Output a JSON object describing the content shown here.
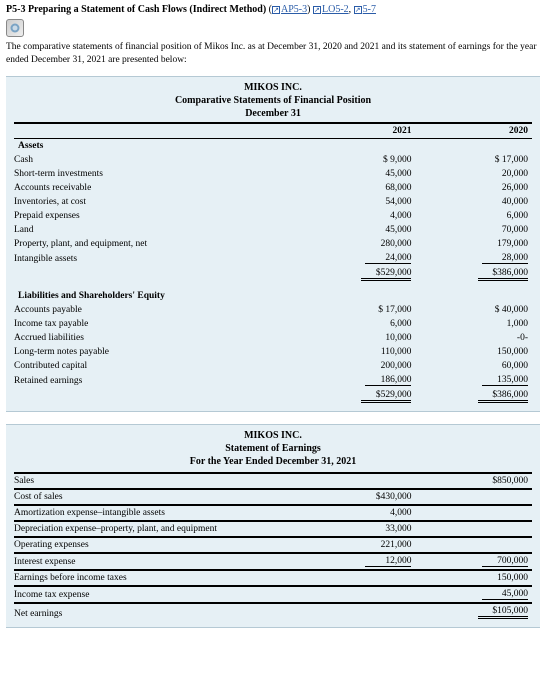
{
  "header": {
    "problem_code": "P5-3",
    "problem_title": "Preparing a Statement of Cash Flows (Indirect Method)",
    "refs": [
      "AP5-3",
      "LO5-2",
      "5-7"
    ]
  },
  "intro": "The comparative statements of financial position of Mikos Inc. as at December 31, 2020 and 2021 and its statement of earnings for the year ended December 31, 2021 are presented below:",
  "sofp": {
    "company": "MIKOS INC.",
    "title": "Comparative Statements of Financial Position",
    "date_line": "December 31",
    "col_headers": [
      "2021",
      "2020"
    ],
    "assets_header": "Assets",
    "assets": [
      {
        "label": "Cash",
        "v1": "$   9,000",
        "v2": "$  17,000"
      },
      {
        "label": "Short-term investments",
        "v1": "45,000",
        "v2": "20,000"
      },
      {
        "label": "Accounts receivable",
        "v1": "68,000",
        "v2": "26,000"
      },
      {
        "label": "Inventories, at cost",
        "v1": "54,000",
        "v2": "40,000"
      },
      {
        "label": "Prepaid expenses",
        "v1": "4,000",
        "v2": "6,000"
      },
      {
        "label": "Land",
        "v1": "45,000",
        "v2": "70,000"
      },
      {
        "label": "Property, plant, and equipment, net",
        "v1": "280,000",
        "v2": "179,000"
      },
      {
        "label": "Intangible assets",
        "v1": "24,000",
        "v2": "28,000",
        "underline": true
      }
    ],
    "assets_total": {
      "v1": "$529,000",
      "v2": "$386,000"
    },
    "le_header": "Liabilities and Shareholders' Equity",
    "le": [
      {
        "label": "Accounts payable",
        "v1": "$  17,000",
        "v2": "$  40,000"
      },
      {
        "label": "Income tax payable",
        "v1": "6,000",
        "v2": "1,000"
      },
      {
        "label": "Accrued liabilities",
        "v1": "10,000",
        "v2": "-0-"
      },
      {
        "label": "Long-term notes payable",
        "v1": "110,000",
        "v2": "150,000"
      },
      {
        "label": "Contributed capital",
        "v1": "200,000",
        "v2": "60,000"
      },
      {
        "label": "Retained earnings",
        "v1": "186,000",
        "v2": "135,000",
        "underline": true
      }
    ],
    "le_total": {
      "v1": "$529,000",
      "v2": "$386,000"
    }
  },
  "soe": {
    "company": "MIKOS INC.",
    "title": "Statement of Earnings",
    "date_line": "For the Year Ended December 31, 2021",
    "rows": [
      {
        "label": "Sales",
        "c1": "",
        "c2": "$850,000"
      },
      {
        "label": "Cost of sales",
        "c1": "$430,000",
        "c2": ""
      },
      {
        "label": "Amortization expense–intangible assets",
        "c1": "4,000",
        "c2": ""
      },
      {
        "label": "Depreciation expense–property, plant, and equipment",
        "c1": "33,000",
        "c2": ""
      },
      {
        "label": "Operating expenses",
        "c1": "221,000",
        "c2": ""
      },
      {
        "label": "Interest expense",
        "c1": "12,000",
        "c2": "700,000",
        "c1_underline": true,
        "c2_underline": true
      },
      {
        "label": "Earnings before income taxes",
        "c1": "",
        "c2": "150,000"
      },
      {
        "label": "Income tax expense",
        "c1": "",
        "c2": "45,000",
        "c2_underline": true
      },
      {
        "label": "Net earnings",
        "c1": "",
        "c2": "$105,000",
        "c2_double": true
      }
    ]
  }
}
